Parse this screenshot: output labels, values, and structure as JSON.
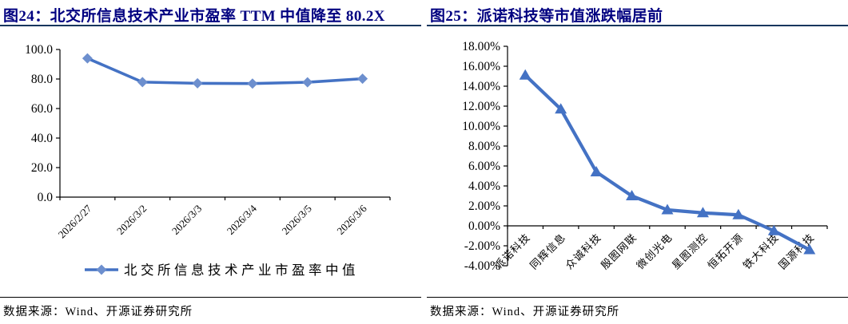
{
  "colors": {
    "title_text": "#000080",
    "title_rule": "#17365d",
    "series_line": "#4472c4",
    "diamond_marker": "#6d8fce",
    "triangle_marker": "#4472c4",
    "axis": "#000000"
  },
  "panels": [
    {
      "title": "图24：北交所信息技术产业市盈率 TTM 中值降至 80.2X",
      "source": "数据来源：Wind、开源证券研究所"
    },
    {
      "title": "图25：派诺科技等市值涨跌幅居前",
      "source": "数据来源：Wind、开源证券研究所"
    }
  ],
  "chart_data": [
    {
      "type": "line",
      "title": "北交所信息技术产业市盈率 TTM 中值",
      "categories": [
        "2026/2/27",
        "2026/3/2",
        "2026/3/3",
        "2026/3/4",
        "2026/3/5",
        "2026/3/6"
      ],
      "values": [
        94.0,
        77.9,
        77.1,
        76.9,
        77.8,
        80.2
      ],
      "ylim": [
        0,
        100
      ],
      "ytick_step": 20,
      "ytick_format": "fixed1",
      "ytick_labels": [
        "0.0",
        "20.0",
        "40.0",
        "60.0",
        "80.0",
        "100.0"
      ],
      "xlabel": "",
      "ylabel": "",
      "grid": false,
      "marker": "diamond",
      "legend": "北交所信息技术产业市盈率中值",
      "legend_position": "bottom",
      "line_color": "#4472c4",
      "marker_color": "#6d8fce"
    },
    {
      "type": "line",
      "title": "派诺科技等市值涨跌幅居前",
      "categories": [
        "派诺科技",
        "同辉信息",
        "众诚科技",
        "殷图网联",
        "微创光电",
        "星图测控",
        "恒拓开源",
        "铁大科技",
        "国源科技"
      ],
      "values": [
        15.1,
        11.7,
        5.4,
        3.0,
        1.6,
        1.3,
        1.1,
        -0.5,
        -2.4
      ],
      "values_unit": "%",
      "ylim": [
        -4,
        18
      ],
      "ytick_step": 2,
      "ytick_format": "percent2",
      "ytick_labels": [
        "-4.00%",
        "-2.00%",
        "0.00%",
        "2.00%",
        "4.00%",
        "6.00%",
        "8.00%",
        "10.00%",
        "12.00%",
        "14.00%",
        "16.00%",
        "18.00%"
      ],
      "xlabel": "",
      "ylabel": "",
      "grid": false,
      "marker": "triangle",
      "legend": null,
      "legend_position": "none",
      "line_color": "#4472c4",
      "marker_color": "#4472c4"
    }
  ]
}
